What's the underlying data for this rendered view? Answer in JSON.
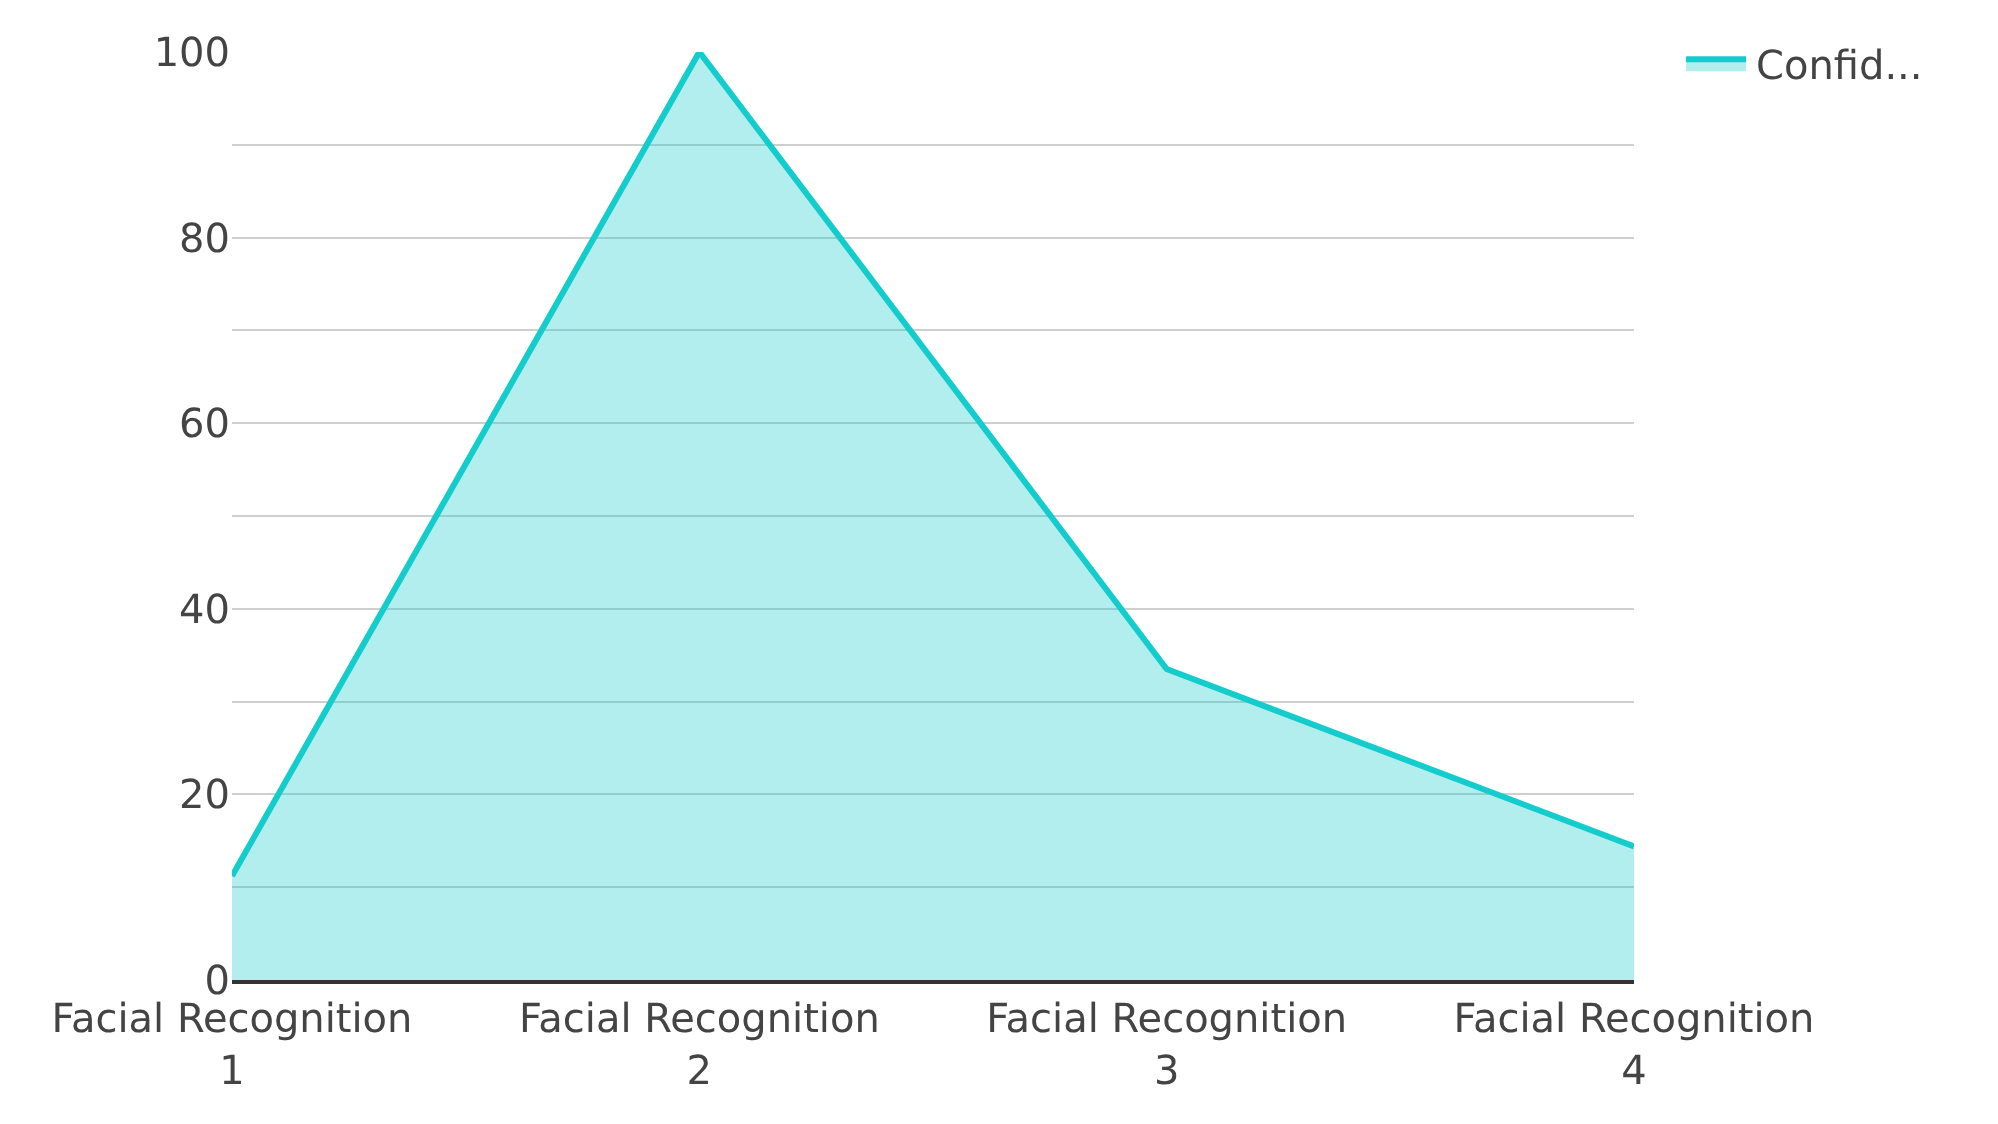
{
  "chart_data": {
    "type": "area",
    "categories": [
      "Facial Recognition 1",
      "Facial Recognition 2",
      "Facial Recognition 3",
      "Facial Recognition 4"
    ],
    "series": [
      {
        "name": "Confid...",
        "color": "#14cccc",
        "values": [
          11.2,
          100,
          33.5,
          14.4
        ]
      }
    ],
    "ylim": [
      0,
      100
    ],
    "yticks": [
      0,
      {
        "value": 10,
        "label": null
      },
      20,
      {
        "value": 30,
        "label": null
      },
      40,
      {
        "value": 50,
        "label": null
      },
      60,
      {
        "value": 70,
        "label": null
      },
      80,
      {
        "value": 90,
        "label": null
      },
      100
    ],
    "grid": "y",
    "legend": "top right",
    "marker": "none"
  }
}
